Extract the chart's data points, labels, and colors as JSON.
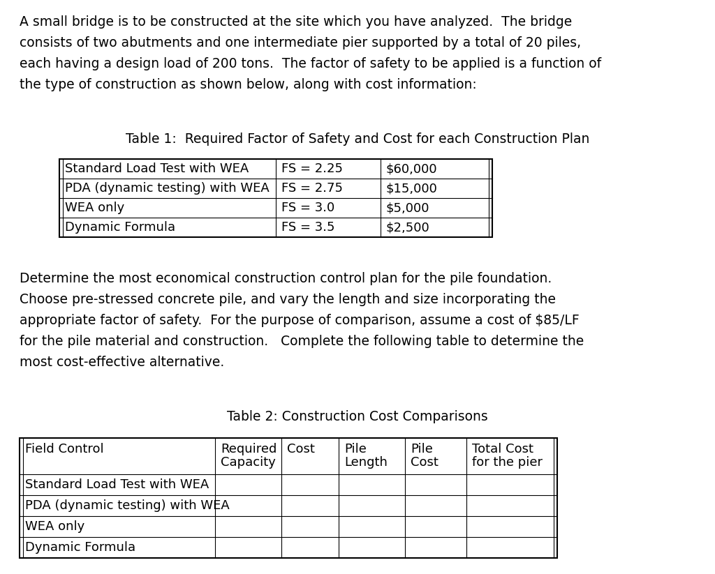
{
  "background_color": "#ffffff",
  "intro_lines": [
    "A small bridge is to be constructed at the site which you have analyzed.  The bridge",
    "consists of two abutments and one intermediate pier supported by a total of 20 piles,",
    "each having a design load of 200 tons.  The factor of safety to be applied is a function of",
    "the type of construction as shown below, along with cost information:"
  ],
  "table1_title": "Table 1:  Required Factor of Safety and Cost for each Construction Plan",
  "table1_col1": [
    "Standard Load Test with WEA",
    "PDA (dynamic testing) with WEA",
    "WEA only",
    "Dynamic Formula"
  ],
  "table1_col2": [
    "FS = 2.25",
    "FS = 2.75",
    "FS = 3.0",
    "FS = 3.5"
  ],
  "table1_col3": [
    "$60,000",
    "$15,000",
    "$5,000",
    "$2,500"
  ],
  "mid_lines": [
    "Determine the most economical construction control plan for the pile foundation.",
    "Choose pre-stressed concrete pile, and vary the length and size incorporating the",
    "appropriate factor of safety.  For the purpose of comparison, assume a cost of $85/LF",
    "for the pile material and construction.   Complete the following table to determine the",
    "most cost-effective alternative."
  ],
  "table2_title": "Table 2: Construction Cost Comparisons",
  "table2_header_line1": [
    "Field Control",
    "Required",
    "Cost",
    "Pile",
    "Pile",
    "Total Cost"
  ],
  "table2_header_line2": [
    "",
    "Capacity",
    "",
    "Length",
    "Cost",
    "for the pier"
  ],
  "table2_rows": [
    [
      "Standard Load Test with WEA",
      "",
      "",
      "",
      "",
      ""
    ],
    [
      "PDA (dynamic testing) with WEA",
      "",
      "",
      "",
      "",
      ""
    ],
    [
      "WEA only",
      "",
      "",
      "",
      "",
      ""
    ],
    [
      "Dynamic Formula",
      "",
      "",
      "",
      "",
      ""
    ]
  ],
  "font_name": "DejaVu Sans",
  "font_size_body": 13.5,
  "font_size_title": 13.5,
  "font_size_table": 13.0
}
